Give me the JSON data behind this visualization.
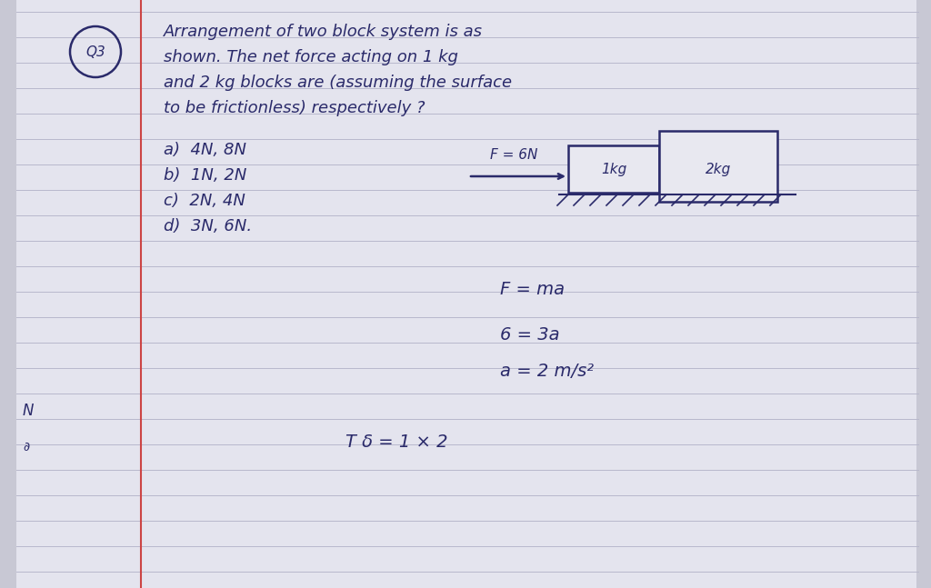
{
  "background_color": "#d8d8e8",
  "page_color": "#e8e8f0",
  "line_color": "#c8c8d8",
  "text_color": "#2a2a6a",
  "title_circle": "Q3",
  "line1": "Arrangement of two block system is as",
  "line2": "shown. The net force acting on 1 kg",
  "line3": "and 2 kg blocks are (assuming the surface",
  "line4": "to be frictionless) respectively ?",
  "options": [
    "a)  4N, 8N",
    "b)  1N, 2N",
    "c)  2N, 4N",
    "d)  3N, 6N."
  ],
  "diagram_label_F": "F = 6N",
  "diagram_label_1kg": "1kg",
  "diagram_label_2kg": "2kg",
  "solution_lines": [
    "F = ma",
    "6 = 3a",
    "a = 2 m/s²"
  ],
  "bottom_line": "T δ = 1 × 2",
  "note_left": "N"
}
